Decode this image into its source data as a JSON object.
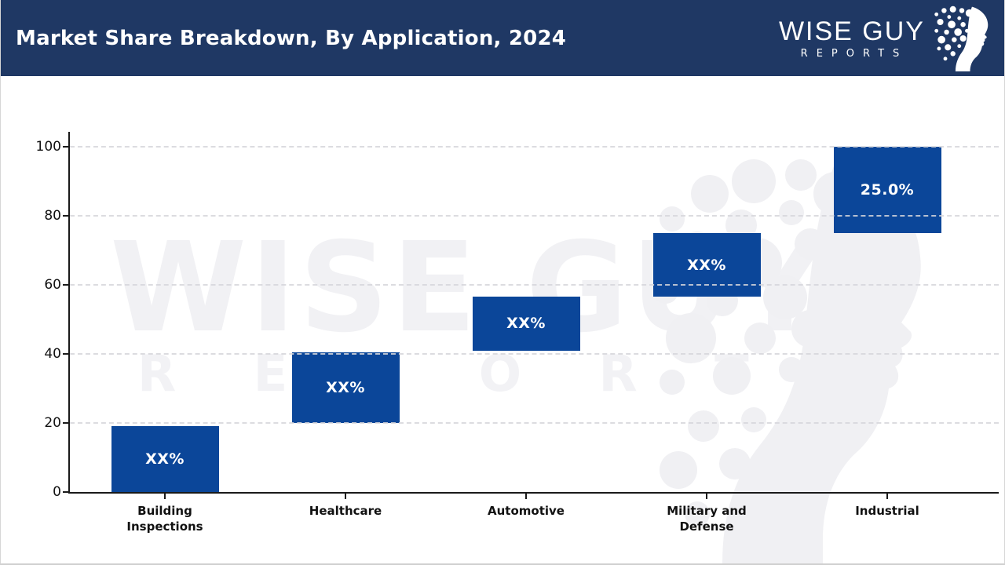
{
  "header": {
    "title": "Market Share Breakdown, By Application, 2024",
    "background": "#1F3864",
    "brand": {
      "line1": "WISE GUY",
      "line2": "REPORTS"
    }
  },
  "watermark": {
    "line1": "WISE GUY",
    "line2": "REPORTS"
  },
  "chart_data": {
    "type": "bar",
    "subtype": "waterfall",
    "title": "Market Share Breakdown, By Application, 2024",
    "xlabel": "",
    "ylabel": "",
    "ylim": [
      0,
      100
    ],
    "yticks": [
      0,
      20,
      40,
      60,
      80,
      100
    ],
    "grid": "dashed-horizontal",
    "legend": "none",
    "bar_color": "#0B4699",
    "bars": [
      {
        "category": "Building Inspections",
        "axis_label": "Building\nInspections",
        "start": 0,
        "end": 19,
        "height": 19,
        "value_label": "XX%"
      },
      {
        "category": "Healthcare",
        "axis_label": "Healthcare",
        "start": 20,
        "end": 40.5,
        "height": 20.5,
        "value_label": "XX%"
      },
      {
        "category": "Automotive",
        "axis_label": "Automotive",
        "start": 41,
        "end": 56.5,
        "height": 15.5,
        "value_label": "XX%"
      },
      {
        "category": "Military and Defense",
        "axis_label": "Military and\nDefense",
        "start": 56.5,
        "end": 75,
        "height": 18.5,
        "value_label": "XX%"
      },
      {
        "category": "Industrial",
        "axis_label": "Industrial",
        "start": 75,
        "end": 100,
        "height": 25,
        "value_label": "25.0%"
      }
    ]
  }
}
